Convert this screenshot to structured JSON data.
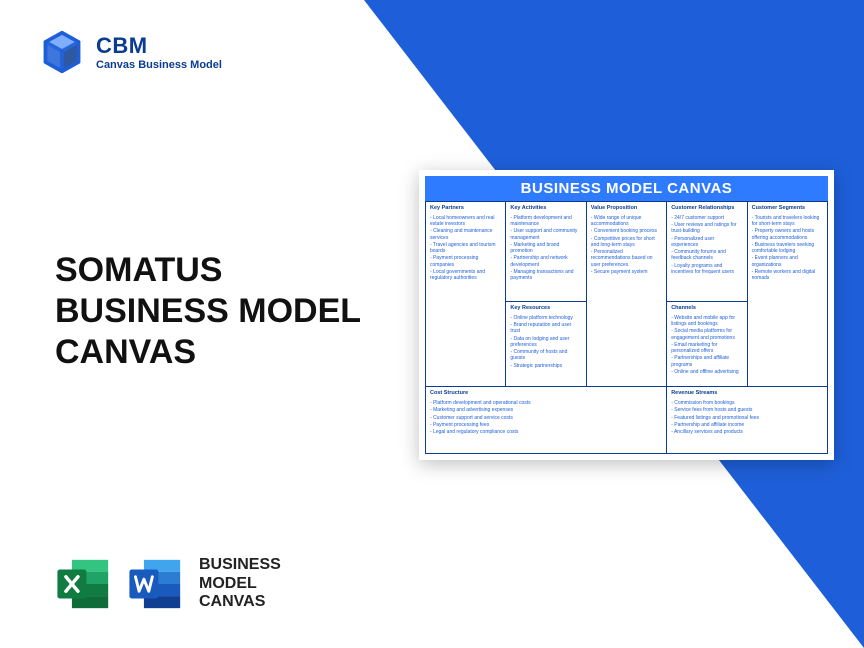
{
  "brand": {
    "title": "CBM",
    "subtitle": "Canvas Business Model",
    "accent_color": "#1e5fd9",
    "dark_blue": "#0a3d91"
  },
  "main_title_l1": "SOMATUS",
  "main_title_l2": "BUSINESS MODEL",
  "main_title_l3": "CANVAS",
  "footer": {
    "l1": "BUSINESS",
    "l2": "MODEL",
    "l3": "CANVAS",
    "excel_colors": {
      "dark": "#107c41",
      "mid": "#21a366",
      "light": "#33c481"
    },
    "word_colors": {
      "dark": "#103f91",
      "mid": "#2b7cd3",
      "light": "#41a5ee"
    }
  },
  "canvas": {
    "title": "BUSINESS MODEL CANVAS",
    "header_bg": "#2e7bff",
    "cells": {
      "kp": {
        "h": "Key Partners",
        "items": [
          "Local homeowners and real estate investors",
          "Cleaning and maintenance services",
          "Travel agencies and tourism boards",
          "Payment processing companies",
          "Local governments and regulatory authorities"
        ]
      },
      "ka": {
        "h": "Key Activities",
        "items": [
          "Platform development and maintenance",
          "User support and community management",
          "Marketing and brand promotion",
          "Partnership and network development",
          "Managing transactions and payments"
        ]
      },
      "kr": {
        "h": "Key Resources",
        "items": [
          "Online platform technology",
          "Brand reputation and user trust",
          "Data on lodging and user preferences",
          "Community of hosts and guests",
          "Strategic partnerships"
        ]
      },
      "vp": {
        "h": "Value Proposition",
        "items": [
          "Wide range of unique accommodations",
          "Convenient booking process",
          "Competitive prices for short and long-term stays",
          "Personalized recommendations based on user preferences",
          "Secure payment system"
        ]
      },
      "cr": {
        "h": "Customer Relationships",
        "items": [
          "24/7 customer support",
          "User reviews and ratings for trust-building",
          "Personalized user experiences",
          "Community forums and feedback channels",
          "Loyalty programs and incentives for frequent users"
        ]
      },
      "ch": {
        "h": "Channels",
        "items": [
          "Website and mobile app for listings and bookings",
          "Social media platforms for engagement and promotions",
          "Email marketing for personalized offers",
          "Partnerships and affiliate programs",
          "Online and offline advertising"
        ]
      },
      "cs": {
        "h": "Customer Segments",
        "items": [
          "Tourists and travelers looking for short-term stays",
          "Property owners and hosts offering accommodations",
          "Business travelers seeking comfortable lodging",
          "Event planners and organizations",
          "Remote workers and digital nomads"
        ]
      },
      "cost": {
        "h": "Cost Structure",
        "items": [
          "Platform development and operational costs",
          "Marketing and advertising expenses",
          "Customer support and service costs",
          "Payment processing fees",
          "Legal and regulatory compliance costs"
        ]
      },
      "rev": {
        "h": "Revenue Streams",
        "items": [
          "Commission from bookings",
          "Service fees from hosts and guests",
          "Featured listings and promotional fees",
          "Partnership and affiliate income",
          "Ancillary services and products"
        ]
      }
    }
  }
}
